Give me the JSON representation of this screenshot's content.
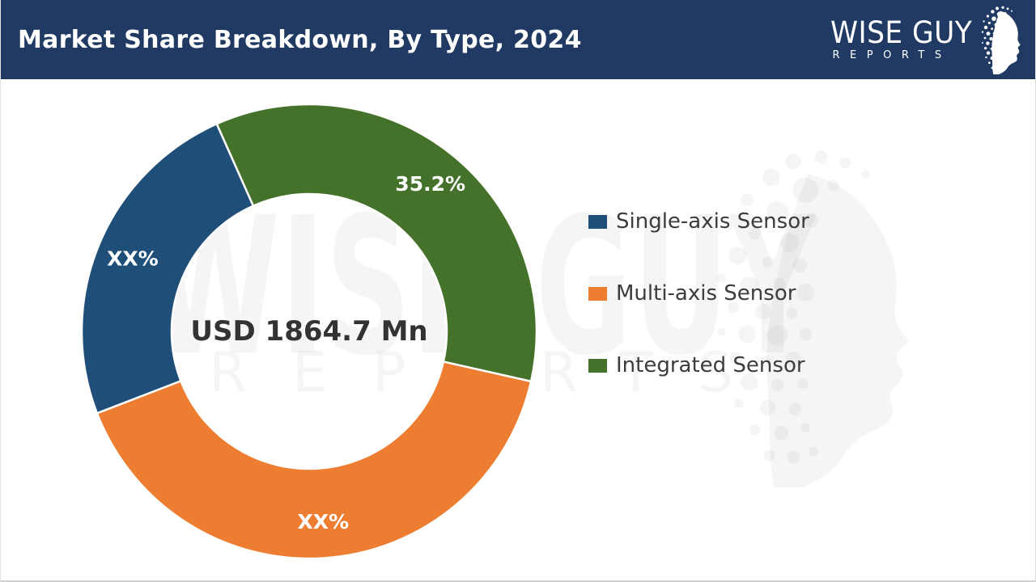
{
  "header": {
    "title": "Market Share Breakdown, By Type, 2024",
    "bg_color": "#203a63",
    "logo": {
      "brand_line1": "WISE GUY",
      "brand_line2": "REPORTS"
    }
  },
  "chart_data": {
    "type": "pie",
    "subtype": "donut",
    "title": "Market Share Breakdown, By Type, 2024",
    "center_label": "USD 1864.7 Mn",
    "start_angle_deg": -24,
    "segments": [
      {
        "label": "Integrated Sensor",
        "display_value": "35.2%",
        "value_pct": 35.2,
        "color": "#44722a"
      },
      {
        "label": "Multi-axis Sensor",
        "display_value": "XX%",
        "value_pct": 40.6,
        "color": "#ed7d31"
      },
      {
        "label": "Single-axis Sensor",
        "display_value": "XX%",
        "value_pct": 24.2,
        "color": "#1f4e79"
      }
    ],
    "legend_position": "right"
  },
  "legend": {
    "items": [
      {
        "label": "Single-axis Sensor",
        "color": "#1f4e79"
      },
      {
        "label": "Multi-axis Sensor",
        "color": "#ed7d31"
      },
      {
        "label": "Integrated Sensor",
        "color": "#44722a"
      }
    ]
  },
  "watermark": {
    "line1": "WISE GUY",
    "line2": "REPORTS"
  }
}
